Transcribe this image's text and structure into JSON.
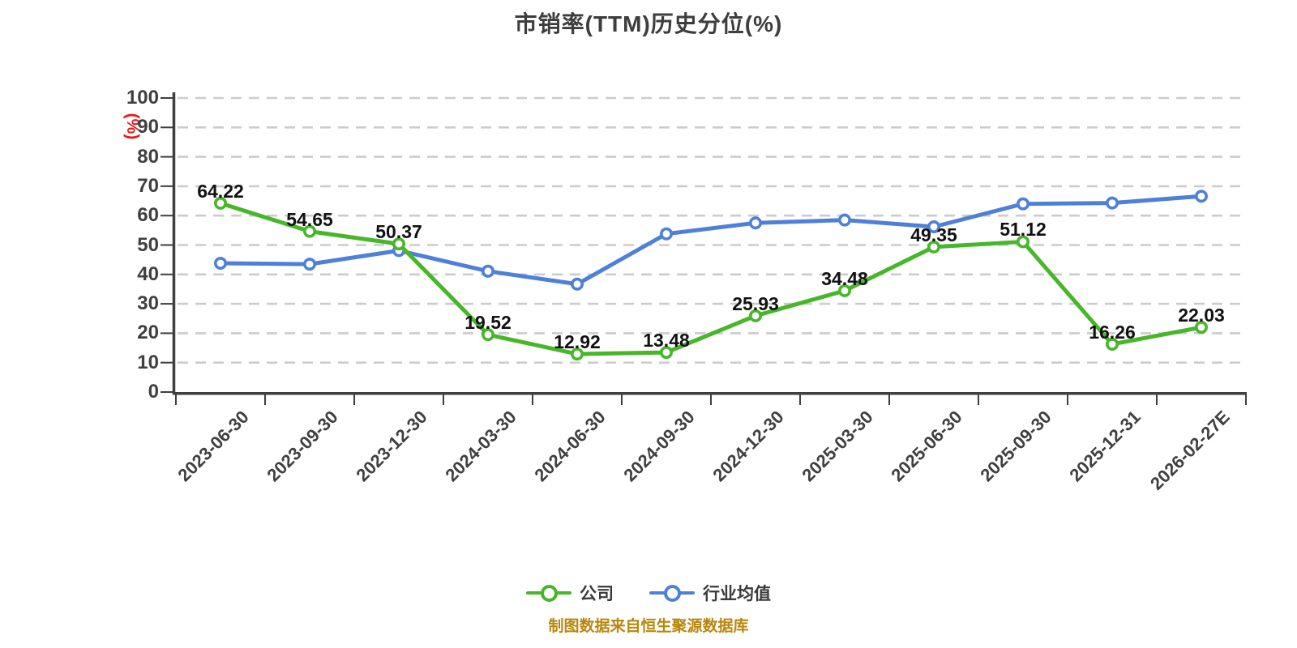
{
  "title": "市销率(TTM)历史分位(%)",
  "footer_note": "制图数据来自恒生聚源数据库",
  "styles": {
    "title_color": "#3d3d3d",
    "grid_color": "#cccccc",
    "axis_color": "#3f3f3f",
    "tick_label_color": "#3f3f3f",
    "value_label_color": "#111111",
    "y_unit_color": "#dc2020",
    "footer_color": "#b8860b",
    "marker_fill": "#ffffff"
  },
  "chart_data": {
    "type": "line",
    "title": "市销率(TTM)历史分位(%)",
    "ylabel": "(%)",
    "ylim": [
      0,
      100
    ],
    "y_tick_step": 10,
    "grid": "horizontal-dashed",
    "legend_position": "bottom",
    "categories": [
      "2023-06-30",
      "2023-09-30",
      "2023-12-30",
      "2024-03-30",
      "2024-06-30",
      "2024-09-30",
      "2024-12-30",
      "2025-03-30",
      "2025-06-30",
      "2025-09-30",
      "2025-12-31",
      "2026-02-27E"
    ],
    "series": [
      {
        "name": "公司",
        "color": "#47b629",
        "show_labels": true,
        "values": [
          64.22,
          54.65,
          50.37,
          19.52,
          12.92,
          13.48,
          25.93,
          34.48,
          49.35,
          51.12,
          16.26,
          22.03
        ]
      },
      {
        "name": "行业均值",
        "color": "#4f80d8",
        "show_labels": false,
        "values": [
          43.8,
          43.5,
          48.1,
          41.1,
          36.7,
          53.8,
          57.5,
          58.5,
          56.2,
          64.0,
          64.3,
          66.6
        ]
      }
    ]
  }
}
